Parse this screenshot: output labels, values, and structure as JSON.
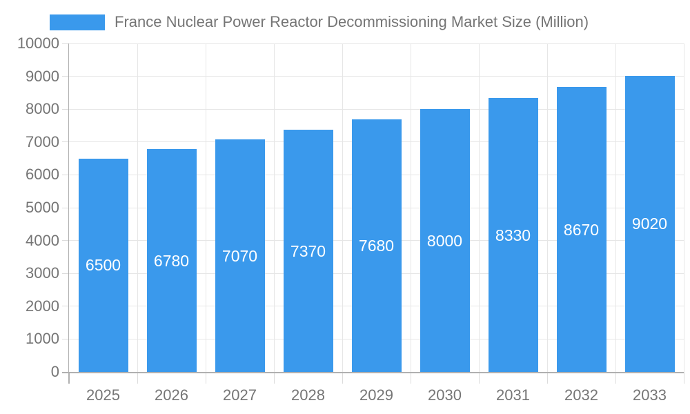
{
  "legend": {
    "label": "France Nuclear Power Reactor Decommissioning Market Size (Million)"
  },
  "chart_data": {
    "type": "bar",
    "title": "France Nuclear Power Reactor Decommissioning Market Size (Million)",
    "categories": [
      "2025",
      "2026",
      "2027",
      "2028",
      "2029",
      "2030",
      "2031",
      "2032",
      "2033"
    ],
    "values": [
      6500,
      6780,
      7070,
      7370,
      7680,
      8000,
      8330,
      8670,
      9020
    ],
    "bar_value_labels": [
      "6500",
      "6780",
      "7070",
      "7370",
      "7680",
      "8000",
      "8330",
      "8670",
      "9020"
    ],
    "xlabel": "",
    "ylabel": "",
    "ylim": [
      0,
      10000
    ],
    "ytick_step": 1000,
    "ytick_labels": [
      "0",
      "1000",
      "2000",
      "3000",
      "4000",
      "5000",
      "6000",
      "7000",
      "8000",
      "9000",
      "10000"
    ],
    "grid": true,
    "legend_position": "top",
    "colors": {
      "bar": "#3A99EC",
      "grid": "#e6e6e6",
      "axis": "#b0b0b0",
      "tick": "#dcdcdc",
      "text": "#757575",
      "bar_label": "#ffffff",
      "background": "#ffffff"
    }
  }
}
